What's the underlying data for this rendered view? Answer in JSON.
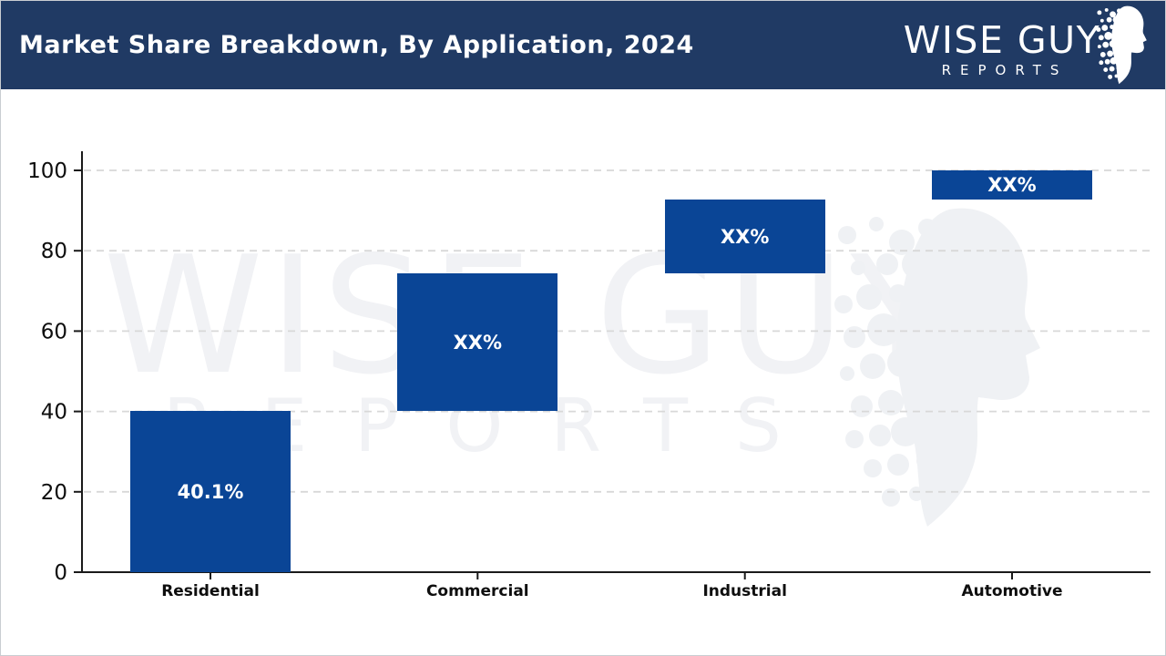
{
  "header": {
    "title": "Market Share Breakdown, By Application, 2024",
    "bg_color": "#203a64"
  },
  "logo": {
    "line1": "WISE GUY",
    "line2": "REPORTS"
  },
  "watermark": {
    "line1": "WISE GUY",
    "line2": "REPORTS"
  },
  "chart_data": {
    "type": "bar",
    "subtype": "waterfall",
    "title": "Market Share Breakdown, By Application, 2024",
    "xlabel": "",
    "ylabel": "",
    "categories": [
      "Residential",
      "Commercial",
      "Industrial",
      "Automotive"
    ],
    "segments": [
      {
        "category": "Residential",
        "start": 0,
        "end": 40.1,
        "label": "40.1%"
      },
      {
        "category": "Commercial",
        "start": 40.1,
        "end": 74.4,
        "label": "XX%"
      },
      {
        "category": "Industrial",
        "start": 74.4,
        "end": 92.7,
        "label": "XX%"
      },
      {
        "category": "Automotive",
        "start": 92.7,
        "end": 100,
        "label": "XX%"
      }
    ],
    "ylim": [
      0,
      105
    ],
    "yticks": [
      0,
      20,
      40,
      60,
      80,
      100
    ],
    "grid": "horizontal dashed",
    "grid_color": "#d8d8d8",
    "axis_color": "#1a1a1a",
    "tick_label_color": "#0d0d0d",
    "bar_color": "#0a4596",
    "label_color": "#ffffff",
    "legend": "none"
  }
}
